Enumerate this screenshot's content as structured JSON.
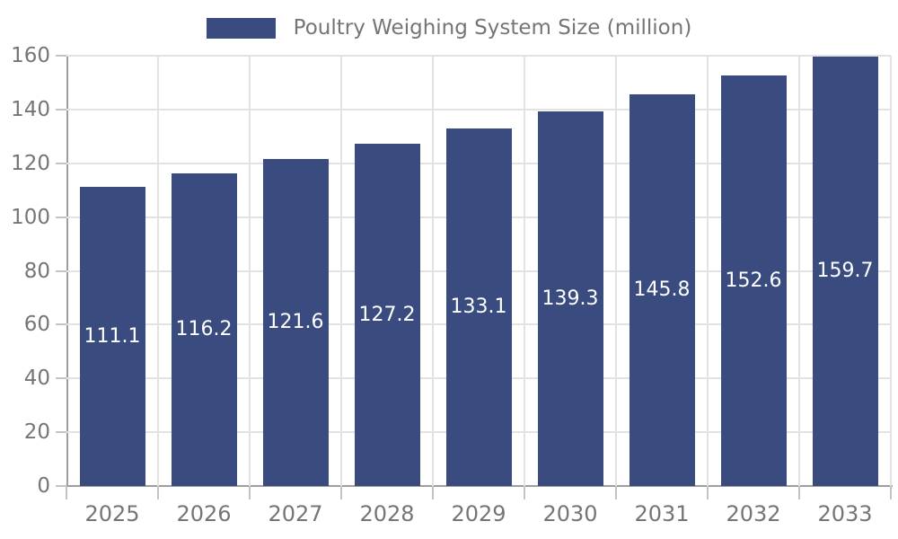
{
  "chart_data": {
    "type": "bar",
    "title": "Poultry Weighing System Size (million)",
    "categories": [
      "2025",
      "2026",
      "2027",
      "2028",
      "2029",
      "2030",
      "2031",
      "2032",
      "2033"
    ],
    "values": [
      111.1,
      116.2,
      121.6,
      127.2,
      133.1,
      139.3,
      145.8,
      152.6,
      159.7
    ],
    "value_labels": [
      "111.1",
      "116.2",
      "121.6",
      "127.2",
      "133.1",
      "139.3",
      "145.8",
      "152.6",
      "159.7"
    ],
    "xlabel": "",
    "ylabel": "",
    "ylim": [
      0,
      160
    ],
    "yticks": [
      0,
      20,
      40,
      60,
      80,
      100,
      120,
      140,
      160
    ],
    "ytick_labels": [
      "0",
      "20",
      "40",
      "60",
      "80",
      "100",
      "120",
      "140",
      "160"
    ],
    "grid": true,
    "legend_position": "top-center",
    "colors": {
      "bar": "#3a4b80",
      "value_label": "#ffffff",
      "axis_text": "#757575",
      "legend_text": "#757575",
      "gridline": "#e2e2e2",
      "axis_line": "#9e9e9e",
      "tick_mark": "#c4c4c4",
      "background": "#ffffff"
    }
  }
}
